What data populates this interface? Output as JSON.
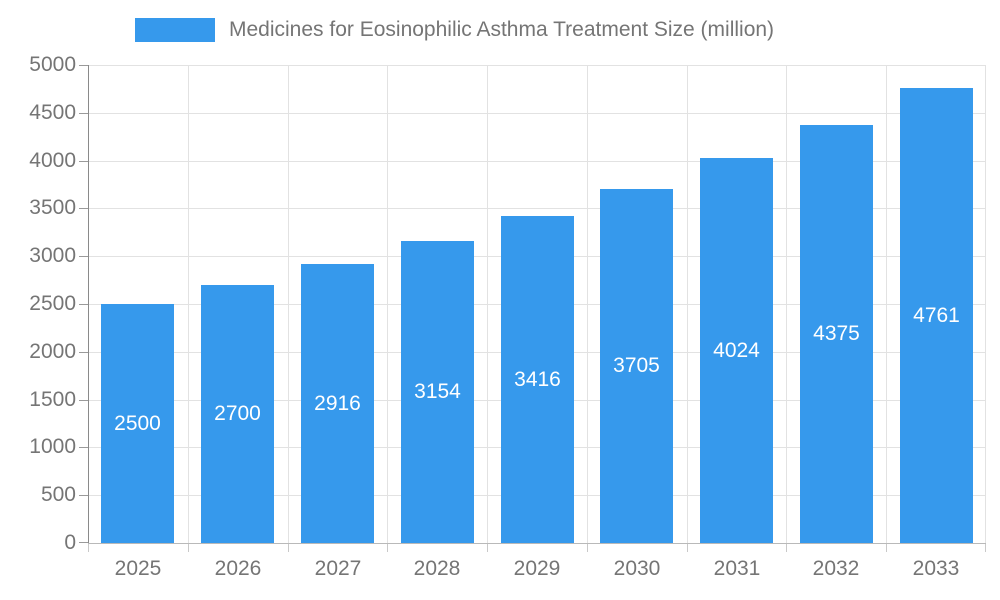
{
  "legend": {
    "items": [
      {
        "label": "Medicines for Eosinophilic Asthma Treatment Size (million)",
        "color": "#3699EC"
      }
    ],
    "position": "top"
  },
  "chart_data": {
    "type": "bar",
    "title": "Medicines for Eosinophilic Asthma Treatment Size (million)",
    "categories": [
      "2025",
      "2026",
      "2027",
      "2028",
      "2029",
      "2030",
      "2031",
      "2032",
      "2033"
    ],
    "values": [
      2500,
      2700,
      2916,
      3154,
      3416,
      3705,
      4024,
      4375,
      4761
    ],
    "value_labels": [
      "2500",
      "2700",
      "2916",
      "3154",
      "3416",
      "3705",
      "4024",
      "4375",
      "4761"
    ],
    "value_label_position": "center-inside-bar",
    "xlabel": "",
    "ylabel": "",
    "ylim": [
      0,
      5000
    ],
    "yticks": [
      0,
      500,
      1000,
      1500,
      2000,
      2500,
      3000,
      3500,
      4000,
      4500,
      5000
    ],
    "ytick_labels": [
      "0",
      "500",
      "1000",
      "1500",
      "2000",
      "2500",
      "3000",
      "3500",
      "4000",
      "4500",
      "5000"
    ],
    "grid": true,
    "legend_position": "top",
    "colors": {
      "bar": "#3699EC",
      "value_label": "#ffffff",
      "axis_text": "#757575",
      "gridline": "#e2e2e2",
      "y_axis_line": "#8a8a8a",
      "x_axis_line": "#b9b9b9",
      "background": "#ffffff"
    }
  }
}
